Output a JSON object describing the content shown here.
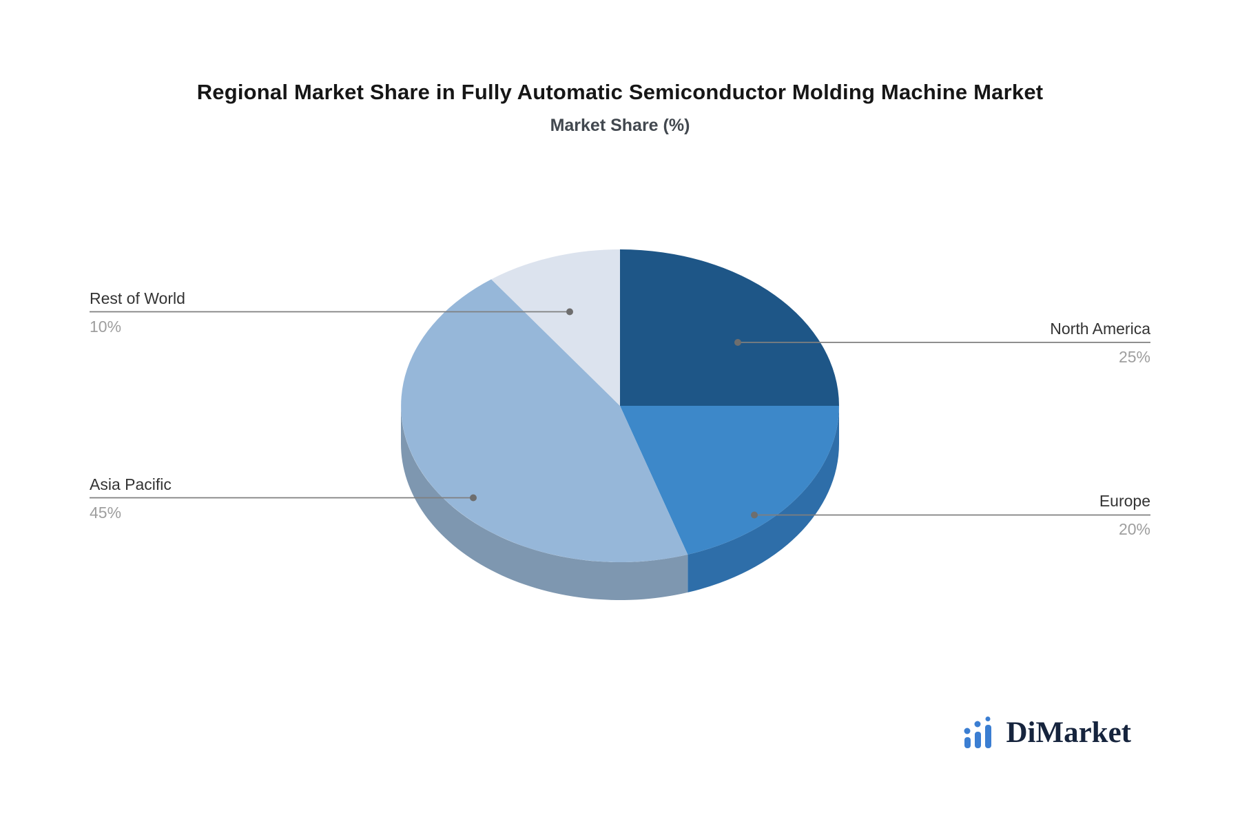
{
  "title": "Regional Market Share in Fully Automatic Semiconductor Molding Machine Market",
  "subtitle": "Market Share (%)",
  "chart_data": {
    "type": "pie",
    "title": "Regional Market Share in Fully Automatic Semiconductor Molding Machine Market",
    "subtitle": "Market Share (%)",
    "unit": "%",
    "effect_3d": true,
    "start_angle_deg": 0,
    "direction": "clockwise",
    "legend_position": "callout-labels",
    "slices": [
      {
        "label": "North America",
        "value": 25,
        "value_label": "25%",
        "color": "#1e5687",
        "side_color": "#174569"
      },
      {
        "label": "Europe",
        "value": 20,
        "value_label": "20%",
        "color": "#3d88c9",
        "side_color": "#2e6ea9"
      },
      {
        "label": "Asia Pacific",
        "value": 45,
        "value_label": "45%",
        "color": "#96b7d9",
        "side_color": "#7e97b0"
      },
      {
        "label": "Rest of World",
        "value": 10,
        "value_label": "10%",
        "color": "#dce3ee",
        "side_color": "#b9c4d5"
      }
    ]
  },
  "logo": {
    "text": "DiMarket",
    "icon": "bar-chart-icon",
    "accent_color": "#3b7ed2",
    "text_color": "#16243d"
  },
  "colors": {
    "background": "#ffffff",
    "leader_line": "#7f7f7f",
    "leader_dot": "#6e6e6e",
    "label_title": "#333333",
    "label_value": "#9e9e9e"
  }
}
